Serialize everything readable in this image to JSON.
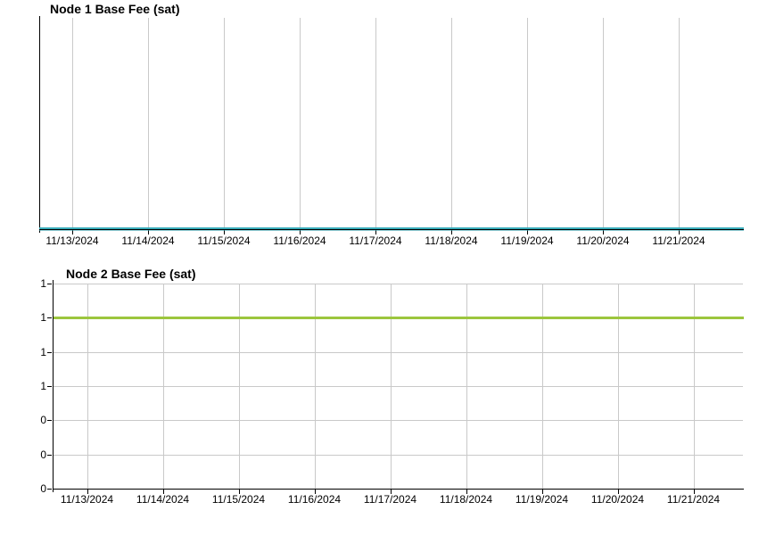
{
  "panel": {
    "background": "#ffffff",
    "text_color": "#000000",
    "gridline_color": "#c9c9c9",
    "axis_color": "#000000"
  },
  "chart_data": [
    {
      "type": "line",
      "title": "Node 1 Base Fee (sat)",
      "x": [
        "11/13/2024",
        "11/14/2024",
        "11/15/2024",
        "11/16/2024",
        "11/17/2024",
        "11/18/2024",
        "11/19/2024",
        "11/20/2024",
        "11/21/2024"
      ],
      "series": [
        {
          "name": "Node 1 Base Fee",
          "values": [
            0,
            0,
            0,
            0,
            0,
            0,
            0,
            0,
            0
          ],
          "color": "#38acba"
        }
      ],
      "xlabel": "",
      "ylabel": "",
      "ytick_labels_topdown": [],
      "grid": "vertical-only",
      "legend": "none",
      "note": "series is constant 0 drawn along the bottom axis; no y-axis tick labels shown"
    },
    {
      "type": "line",
      "title": "Node 2 Base Fee (sat)",
      "x": [
        "11/13/2024",
        "11/14/2024",
        "11/15/2024",
        "11/16/2024",
        "11/17/2024",
        "11/18/2024",
        "11/19/2024",
        "11/20/2024",
        "11/21/2024"
      ],
      "series": [
        {
          "name": "Node 2 Base Fee",
          "values": [
            1,
            1,
            1,
            1,
            1,
            1,
            1,
            1,
            1
          ],
          "color": "#9cc63d"
        }
      ],
      "xlabel": "",
      "ylabel": "",
      "ylim": [
        0,
        1.2
      ],
      "yticks": [
        0,
        0.2,
        0.4,
        0.6,
        0.8,
        1.0,
        1.2
      ],
      "ytick_labels_topdown": [
        "1",
        "1",
        "1",
        "1",
        "0",
        "0",
        "0"
      ],
      "grid": "both",
      "legend": "none",
      "note": "series is constant 1; y tick labels are rounded to integers"
    }
  ]
}
